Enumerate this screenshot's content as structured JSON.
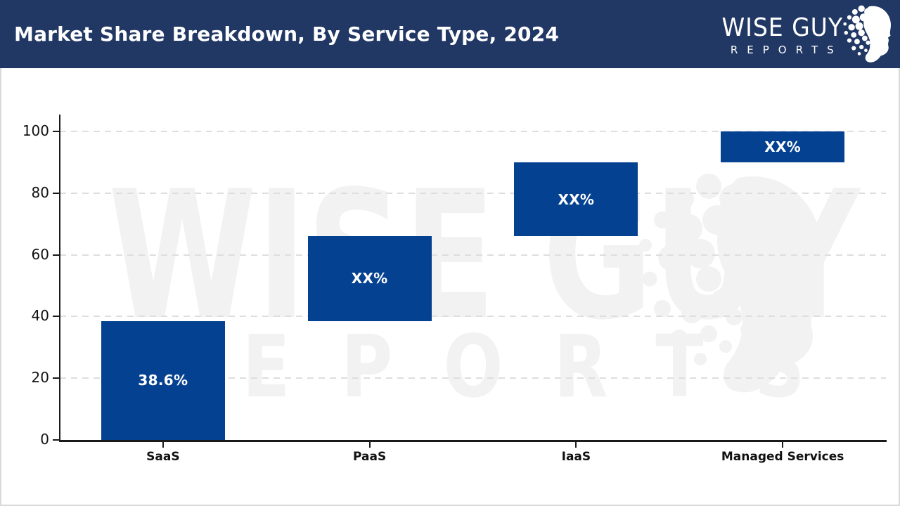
{
  "header": {
    "title": "Market Share Breakdown, By Service Type, 2024",
    "logo": {
      "line1": "WISE GUY",
      "line2": "REPORTS"
    }
  },
  "watermark": {
    "line1": "WISE GUY",
    "line2": "REPORTS"
  },
  "chart_data": {
    "type": "bar",
    "subtype": "waterfall",
    "title": "Market Share Breakdown, By Service Type, 2024",
    "categories": [
      "SaaS",
      "PaaS",
      "IaaS",
      "Managed Services"
    ],
    "segments": [
      {
        "category": "SaaS",
        "start": 0,
        "end": 38.6,
        "label": "38.6%"
      },
      {
        "category": "PaaS",
        "start": 38.6,
        "end": 66,
        "label": "XX%"
      },
      {
        "category": "IaaS",
        "start": 66,
        "end": 90,
        "label": "XX%"
      },
      {
        "category": "Managed Services",
        "start": 90,
        "end": 100,
        "label": "XX%"
      }
    ],
    "xlabel": "",
    "ylabel": "",
    "ylim": [
      0,
      105
    ],
    "y_ticks": [
      0,
      20,
      40,
      60,
      80,
      100
    ],
    "grid": "horizontal-dashed",
    "legend": "none",
    "bar_color": "#054191",
    "bar_label_color": "#ffffff"
  },
  "colors": {
    "header_bg": "#213764",
    "bar": "#054191",
    "watermark": "#f2f2f2",
    "gridline": "#dedede",
    "axis": "#1a1a1a",
    "frame_border": "#d9d9d9"
  }
}
